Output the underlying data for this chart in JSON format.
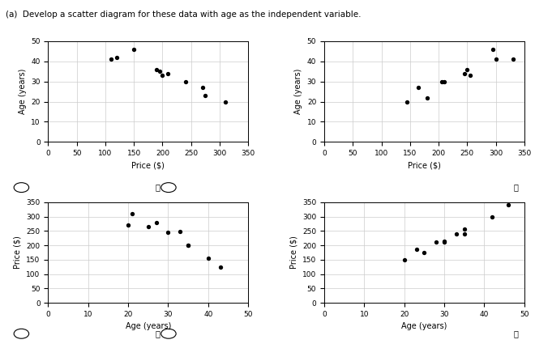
{
  "title": "(a)  Develop a scatter diagram for these data with age as the independent variable.",
  "plot1": {
    "x": [
      110,
      120,
      150,
      190,
      195,
      200,
      210,
      240,
      270,
      275,
      310
    ],
    "y": [
      41,
      42,
      46,
      36,
      35,
      33,
      34,
      30,
      27,
      23,
      20
    ],
    "xlabel": "Price ($)",
    "ylabel": "Age (years)",
    "xlim": [
      0,
      350
    ],
    "ylim": [
      0,
      50
    ],
    "xticks": [
      0,
      50,
      100,
      150,
      200,
      250,
      300,
      350
    ],
    "yticks": [
      0,
      10,
      20,
      30,
      40,
      50
    ]
  },
  "plot2": {
    "x": [
      145,
      165,
      180,
      205,
      210,
      245,
      250,
      255,
      295,
      300,
      330
    ],
    "y": [
      20,
      27,
      22,
      30,
      30,
      34,
      36,
      33,
      46,
      41,
      41
    ],
    "xlabel": "Price ($)",
    "ylabel": "Age (years)",
    "xlim": [
      0,
      350
    ],
    "ylim": [
      0,
      50
    ],
    "xticks": [
      0,
      50,
      100,
      150,
      200,
      250,
      300,
      350
    ],
    "yticks": [
      0,
      10,
      20,
      30,
      40,
      50
    ]
  },
  "plot3": {
    "x": [
      20,
      21,
      25,
      27,
      30,
      33,
      35,
      35,
      40,
      43
    ],
    "y": [
      270,
      310,
      265,
      280,
      245,
      248,
      200,
      200,
      155,
      125
    ],
    "xlabel": "Age (years)",
    "ylabel": "Price ($)",
    "xlim": [
      0,
      50
    ],
    "ylim": [
      0,
      350
    ],
    "xticks": [
      0,
      10,
      20,
      30,
      40,
      50
    ],
    "yticks": [
      0,
      50,
      100,
      150,
      200,
      250,
      300,
      350
    ]
  },
  "plot4": {
    "x": [
      20,
      23,
      25,
      28,
      30,
      30,
      33,
      35,
      35,
      42,
      46
    ],
    "y": [
      150,
      185,
      175,
      210,
      210,
      215,
      240,
      255,
      240,
      300,
      340
    ],
    "xlabel": "Age (years)",
    "ylabel": "Price ($)",
    "xlim": [
      0,
      50
    ],
    "ylim": [
      0,
      350
    ],
    "xticks": [
      0,
      10,
      20,
      30,
      40,
      50
    ],
    "yticks": [
      0,
      50,
      100,
      150,
      200,
      250,
      300,
      350
    ]
  },
  "dot_color": "#000000",
  "dot_size": 8,
  "grid_color": "#cccccc",
  "bg_color": "#ffffff"
}
